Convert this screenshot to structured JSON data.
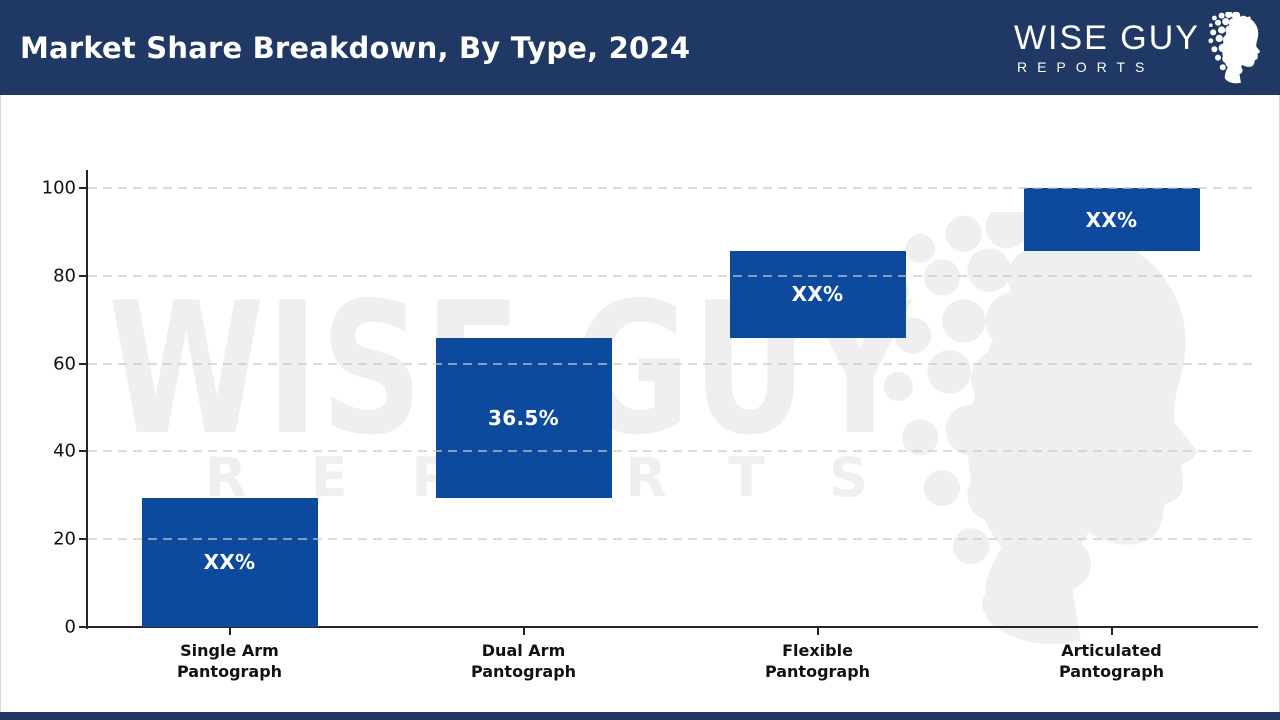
{
  "header": {
    "title": "Market Share Breakdown, By Type, 2024",
    "logo": {
      "line1": "WISE GUY",
      "line2": "REPORTS"
    }
  },
  "watermark": {
    "line1": "WISE GUY",
    "line2": "REPORTS"
  },
  "colors": {
    "header_bg": "#1f3864",
    "footer_bg": "#1f3864",
    "bar": "#0d4a9e",
    "bar_label": "#ffffff",
    "grid": "#d9d9d9",
    "axis": "#262626",
    "watermark": "#efeff1"
  },
  "chart_data": {
    "type": "bar",
    "subtype": "waterfall-floating-bars",
    "title": "Market Share Breakdown, By Type, 2024",
    "categories": [
      "Single Arm\nPantograph",
      "Dual Arm\nPantograph",
      "Flexible\nPantograph",
      "Articulated\nPantograph"
    ],
    "segments": [
      {
        "category": "Single Arm Pantograph",
        "start": 0,
        "end": 29.4,
        "label": "XX%"
      },
      {
        "category": "Dual Arm Pantograph",
        "start": 29.4,
        "end": 65.9,
        "label": "36.5%",
        "value": 36.5
      },
      {
        "category": "Flexible Pantograph",
        "start": 65.9,
        "end": 85.6,
        "label": "XX%"
      },
      {
        "category": "Articulated Pantograph",
        "start": 85.6,
        "end": 100,
        "label": "XX%"
      }
    ],
    "xlabel": "",
    "ylabel": "",
    "ylim": [
      0,
      100
    ],
    "yticks": [
      0,
      20,
      40,
      60,
      80,
      100
    ],
    "grid": "horizontal-dashed",
    "legend": "none"
  }
}
